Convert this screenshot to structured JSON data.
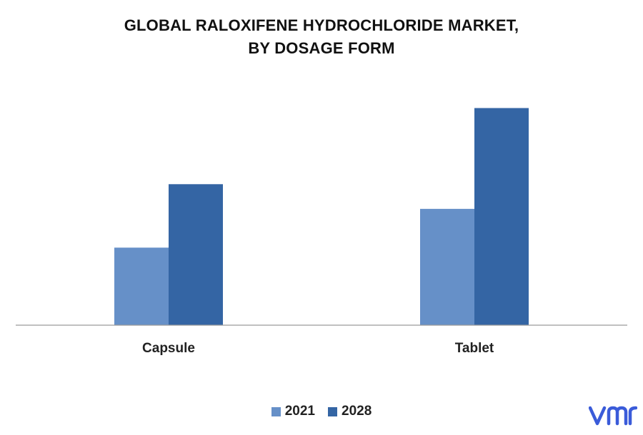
{
  "chart_data": {
    "type": "bar",
    "title_lines": [
      "GLOBAL RALOXIFENE HYDROCHLORIDE MARKET,",
      "BY DOSAGE FORM"
    ],
    "categories": [
      "Capsule",
      "Tablet"
    ],
    "series": [
      {
        "name": "2021",
        "values": [
          1.1,
          1.65
        ],
        "color": "#6690C8"
      },
      {
        "name": "2028",
        "values": [
          2.0,
          3.08
        ],
        "color": "#3465A4"
      }
    ],
    "ylim": [
      0,
      3.5
    ],
    "grid": false,
    "legend_position": "bottom-center"
  },
  "logo": {
    "text": "vmr",
    "color": "#3A5BD9"
  }
}
